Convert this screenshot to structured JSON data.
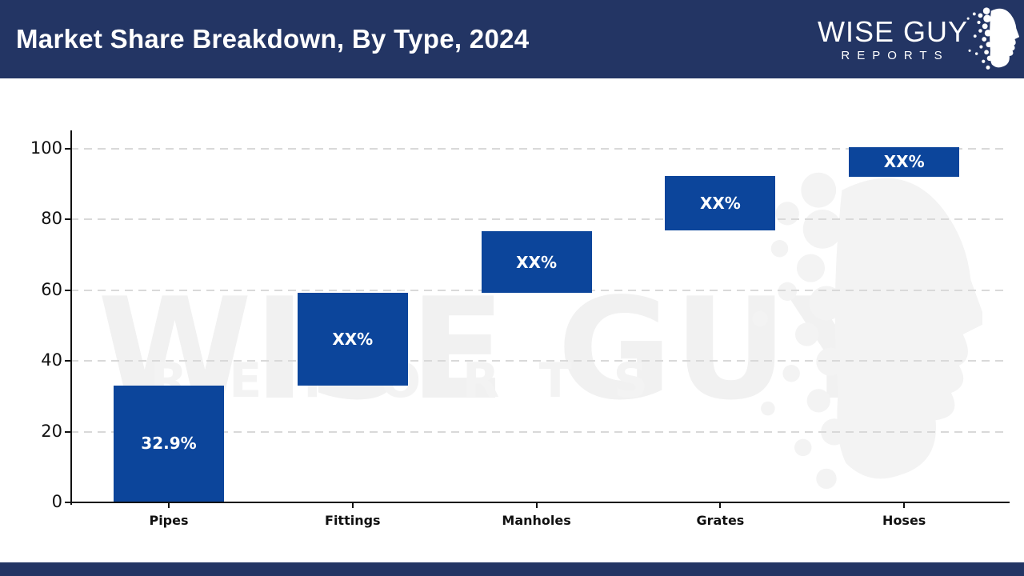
{
  "header": {
    "title": "Market Share Breakdown, By Type, 2024",
    "logo": {
      "line1": "WISE GUY",
      "line2": "REPORTS"
    }
  },
  "watermark": {
    "line1": "WISE GUY",
    "line2": "REPORTS"
  },
  "chart_data": {
    "type": "bar",
    "subtype": "waterfall-floating-bars",
    "title": "Market Share Breakdown, By Type, 2024",
    "categories": [
      "Pipes",
      "Fittings",
      "Manholes",
      "Grates",
      "Hoses"
    ],
    "segments": [
      {
        "category": "Pipes",
        "start": 0,
        "end": 32.9,
        "label": "32.9%"
      },
      {
        "category": "Fittings",
        "start": 32.9,
        "end": 59.1,
        "label": "XX%"
      },
      {
        "category": "Manholes",
        "start": 59.1,
        "end": 76.4,
        "label": "XX%"
      },
      {
        "category": "Grates",
        "start": 76.6,
        "end": 92.1,
        "label": "XX%"
      },
      {
        "category": "Hoses",
        "start": 91.9,
        "end": 100.2,
        "label": "XX%"
      }
    ],
    "y_ticks": [
      0,
      20,
      40,
      60,
      80,
      100
    ],
    "ylim": [
      0,
      105
    ],
    "xlabel": "",
    "ylabel": "",
    "grid": "horizontal-dashed",
    "legend": "none"
  },
  "colors": {
    "header_bg": "#233564",
    "footer_bg": "#233564",
    "bar": "#0c459b",
    "grid": "#d9d9d9",
    "axis": "#111111",
    "bar_label": "#ffffff",
    "watermark": "#f1f1f1"
  }
}
